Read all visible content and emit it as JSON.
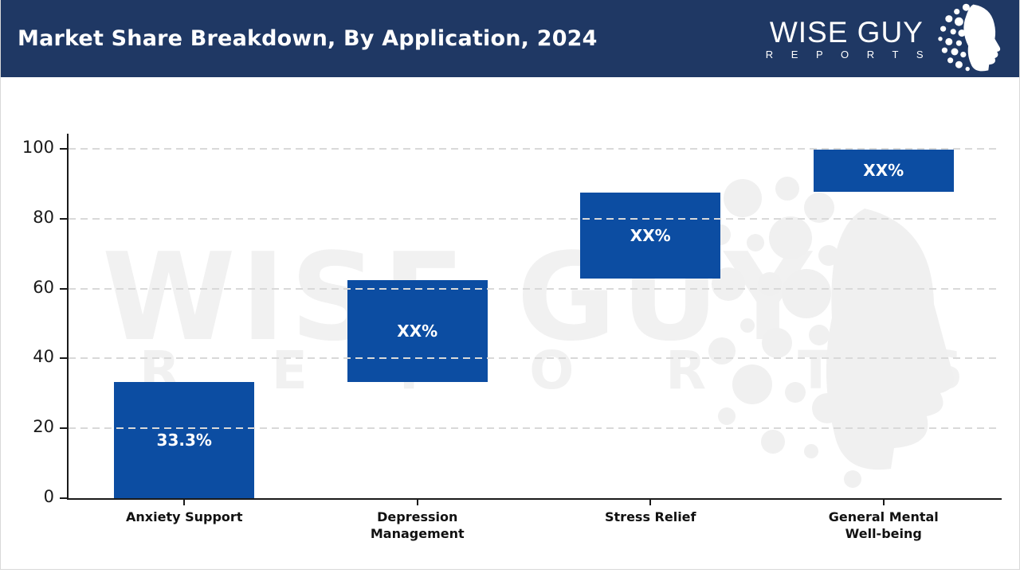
{
  "header": {
    "title": "Market Share Breakdown, By Application, 2024",
    "logo": {
      "line1": "WISE GUY",
      "line2": "R E P O R T S"
    }
  },
  "watermark": {
    "line1": "WISE GUY",
    "line2": "R E P O R T S"
  },
  "chart_data": {
    "type": "bar",
    "subtype": "waterfall",
    "title": "Market Share Breakdown, By Application, 2024",
    "xlabel": "",
    "ylabel": "",
    "ylim": [
      0,
      104
    ],
    "yticks": [
      0,
      20,
      40,
      60,
      80,
      100
    ],
    "grid": "horizontal dashed gridlines drawn over bars",
    "legend": "none",
    "bar_color": "#0C4DA2",
    "bar_label_color": "#FFFFFF",
    "categories": [
      "Anxiety Support",
      "Depression\nManagement",
      "Stress Relief",
      "General Mental\nWell-being"
    ],
    "bars": [
      {
        "category": "Anxiety Support",
        "start": 0,
        "end": 33.3,
        "label": "33.3%"
      },
      {
        "category": "Depression Management",
        "start": 33.3,
        "end": 62.4,
        "label": "XX%"
      },
      {
        "category": "Stress Relief",
        "start": 62.8,
        "end": 87.5,
        "label": "XX%"
      },
      {
        "category": "General Mental Well-being",
        "start": 87.7,
        "end": 99.8,
        "label": "XX%"
      }
    ]
  },
  "colors": {
    "header_bg": "#1F3864",
    "bar": "#0C4DA2",
    "grid": "#D9D9D9",
    "axis": "#1A1A1A",
    "watermark": "#F1F1F1",
    "title_text": "#FFFFFF"
  }
}
